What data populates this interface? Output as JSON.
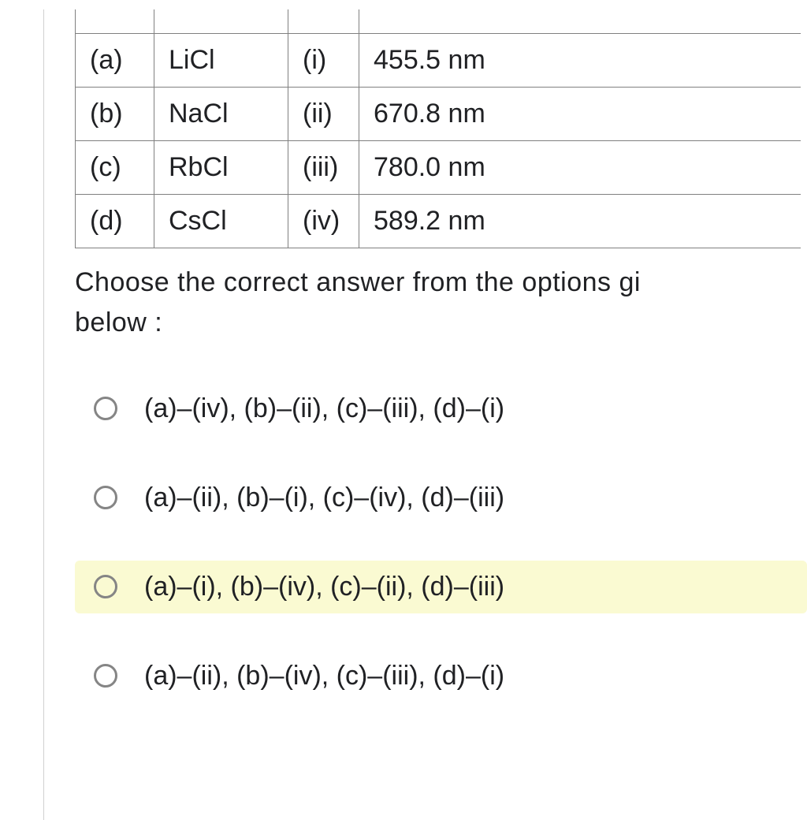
{
  "text_color": "#202124",
  "background_color": "#ffffff",
  "highlight_color": "#fafad2",
  "border_color": "#808080",
  "radio_border_color": "#858585",
  "font_size_body": 34,
  "table": {
    "rows": [
      {
        "label1": "(a)",
        "item1": "LiCl",
        "label2": "(i)",
        "item2": "455.5 nm"
      },
      {
        "label1": "(b)",
        "item1": "NaCl",
        "label2": "(ii)",
        "item2": "670.8 nm"
      },
      {
        "label1": "(c)",
        "item1": "RbCl",
        "label2": "(iii)",
        "item2": "780.0 nm"
      },
      {
        "label1": "(d)",
        "item1": "CsCl",
        "label2": "(iv)",
        "item2": "589.2 nm"
      }
    ]
  },
  "instruction_line1": "Choose the correct answer from the options gi",
  "instruction_line2": "below :",
  "options": [
    {
      "text": "(a)–(iv), (b)–(ii), (c)–(iii), (d)–(i)",
      "highlighted": false
    },
    {
      "text": "(a)–(ii), (b)–(i), (c)–(iv), (d)–(iii)",
      "highlighted": false
    },
    {
      "text": "(a)–(i), (b)–(iv), (c)–(ii), (d)–(iii)",
      "highlighted": true
    },
    {
      "text": "(a)–(ii), (b)–(iv), (c)–(iii), (d)–(i)",
      "highlighted": false
    }
  ]
}
